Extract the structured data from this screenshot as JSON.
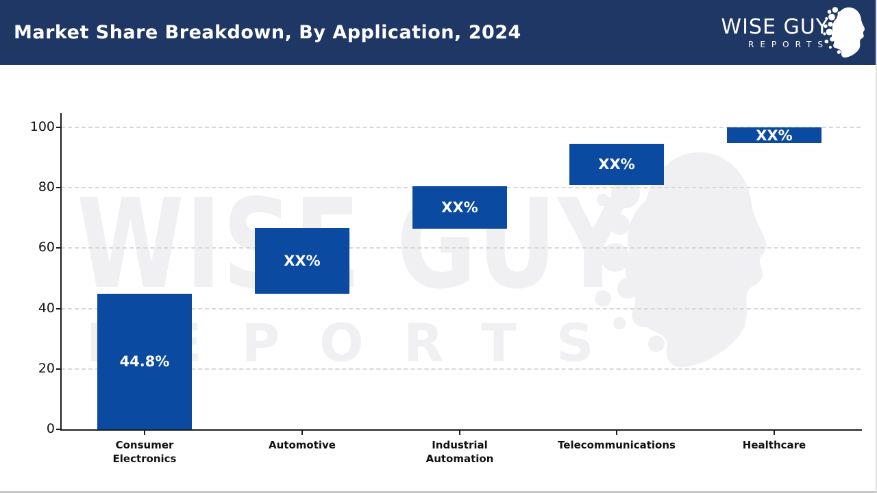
{
  "header": {
    "title": "Market Share Breakdown, By Application, 2024",
    "brand": {
      "line1": "WISE GUY",
      "line2": "REPORTS"
    }
  },
  "watermark": {
    "line1": "WISE GUY",
    "line2": "REPORTS"
  },
  "colors": {
    "header_bg": "#1f3764",
    "bar": "#0a4aa0",
    "bar_label": "#ffffff",
    "axis": "#1c1c1c",
    "gridline": "#d8d8d8",
    "watermark": "#f0f0f2"
  },
  "chart_data": {
    "type": "bar",
    "subtype": "waterfall",
    "title": "Market Share Breakdown, By Application, 2024",
    "categories": [
      "Consumer\nElectronics",
      "Automotive",
      "Industrial\nAutomation",
      "Telecommunications",
      "Healthcare"
    ],
    "segments": [
      {
        "category": "Consumer Electronics",
        "start": 0,
        "end": 44.8,
        "label": "44.8%"
      },
      {
        "category": "Automotive",
        "start": 44.9,
        "end": 66.6,
        "label": "XX%"
      },
      {
        "category": "Industrial Automation",
        "start": 66.4,
        "end": 80.4,
        "label": "XX%"
      },
      {
        "category": "Telecommunications",
        "start": 80.9,
        "end": 94.6,
        "label": "XX%"
      },
      {
        "category": "Healthcare",
        "start": 94.7,
        "end": 99.9,
        "label": "XX%"
      }
    ],
    "values": [
      44.8,
      21.7,
      14.0,
      13.7,
      5.2
    ],
    "bar_labels": [
      "44.8%",
      "XX%",
      "XX%",
      "XX%",
      "XX%"
    ],
    "xlabel": "",
    "ylabel": "",
    "ylim": [
      0,
      100
    ],
    "yticks": [
      0,
      20,
      40,
      60,
      80,
      100
    ],
    "grid": "horizontal-dashed",
    "legend": "none"
  }
}
